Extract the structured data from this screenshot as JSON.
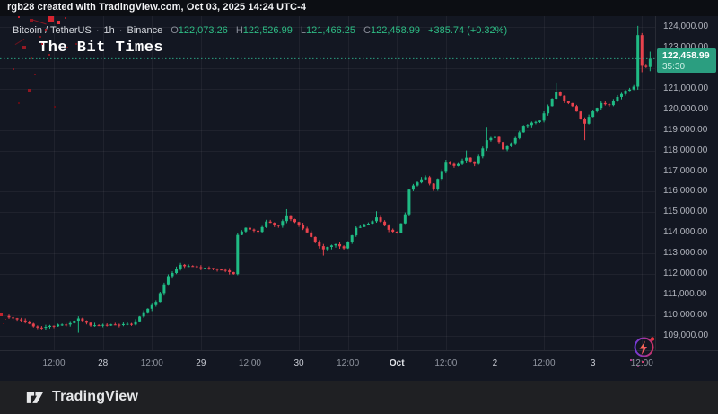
{
  "top_strip": {
    "text": "rgb28 created with TradingView.com, Oct 03, 2025 14:24 UTC-4"
  },
  "header": {
    "symbol": "Bitcoin / TetherUS",
    "interval": "1h",
    "exchange": "Binance",
    "separator": "·",
    "ohlc": [
      {
        "label": "O",
        "value": "122,073.26"
      },
      {
        "label": "H",
        "value": "122,526.99"
      },
      {
        "label": "L",
        "value": "121,466.25"
      },
      {
        "label": "C",
        "value": "122,458.99"
      }
    ],
    "change": "+385.74 (+0.32%)"
  },
  "watermark": {
    "text": "The Bit Times"
  },
  "price_label": {
    "price": "122,458.99",
    "countdown": "35:30"
  },
  "footer": {
    "brand": "TradingView"
  },
  "colors": {
    "up": "#1FBB84",
    "down": "#E8424D",
    "value_green": "#2EBD85",
    "price_label_bg": "#2B9E80",
    "chart_bg": "#131722",
    "grid": "rgba(255,255,255,0.05)"
  },
  "chart_data": {
    "type": "candlestick",
    "title": "Bitcoin / TetherUS · 1h · Binance",
    "timeframe": "1h",
    "grid": true,
    "y_axis": {
      "min": 109000,
      "max": 124000,
      "step": 1000,
      "labels": [
        "124,000.00",
        "123,000.00",
        "122,000.00",
        "121,000.00",
        "120,000.00",
        "119,000.00",
        "118,000.00",
        "117,000.00",
        "116,000.00",
        "115,000.00",
        "114,000.00",
        "113,000.00",
        "112,000.00",
        "111,000.00",
        "110,000.00",
        "109,000.00"
      ]
    },
    "x_axis": {
      "ticks": [
        {
          "label": "12:00",
          "i": 11,
          "kind": "time"
        },
        {
          "label": "28",
          "i": 23,
          "kind": "day"
        },
        {
          "label": "12:00",
          "i": 35,
          "kind": "time"
        },
        {
          "label": "29",
          "i": 47,
          "kind": "day"
        },
        {
          "label": "12:00",
          "i": 59,
          "kind": "time"
        },
        {
          "label": "30",
          "i": 71,
          "kind": "day"
        },
        {
          "label": "12:00",
          "i": 83,
          "kind": "time"
        },
        {
          "label": "Oct",
          "i": 95,
          "kind": "month"
        },
        {
          "label": "12:00",
          "i": 107,
          "kind": "time"
        },
        {
          "label": "2",
          "i": 119,
          "kind": "day"
        },
        {
          "label": "12:00",
          "i": 131,
          "kind": "time"
        },
        {
          "label": "3",
          "i": 143,
          "kind": "day"
        },
        {
          "label": "12:00",
          "i": 155,
          "kind": "time"
        }
      ]
    },
    "price_line": 122458.99,
    "last_close": 122458.99,
    "hours": 158,
    "waypoints": [
      [
        0,
        109900
      ],
      [
        3,
        109750
      ],
      [
        7,
        109400
      ],
      [
        14,
        109550
      ],
      [
        17,
        109850,
        null,
        109150
      ],
      [
        20,
        109500
      ],
      [
        30,
        109550
      ],
      [
        33,
        110150
      ],
      [
        36,
        110650
      ],
      [
        39,
        111900
      ],
      [
        42,
        112450
      ],
      [
        47,
        112300
      ],
      [
        52,
        112200
      ],
      [
        55,
        112000
      ],
      [
        56,
        113900
      ],
      [
        58,
        114250
      ],
      [
        61,
        114050
      ],
      [
        63,
        114550
      ],
      [
        66,
        114350
      ],
      [
        68,
        114850,
        115150
      ],
      [
        71,
        114400
      ],
      [
        74,
        113800
      ],
      [
        77,
        113200,
        null,
        112900
      ],
      [
        80,
        113450
      ],
      [
        82,
        113250
      ],
      [
        85,
        114250
      ],
      [
        88,
        114450
      ],
      [
        90,
        114750,
        115050
      ],
      [
        93,
        114150
      ],
      [
        95,
        114000
      ],
      [
        97,
        114900
      ],
      [
        98,
        116100
      ],
      [
        100,
        116450
      ],
      [
        102,
        116700
      ],
      [
        104,
        116150
      ],
      [
        107,
        117450
      ],
      [
        109,
        117250
      ],
      [
        112,
        117650,
        118000
      ],
      [
        114,
        117350
      ],
      [
        117,
        118500,
        119150
      ],
      [
        119,
        118700
      ],
      [
        121,
        118050
      ],
      [
        123,
        118350
      ],
      [
        126,
        119200
      ],
      [
        128,
        119350
      ],
      [
        130,
        119450
      ],
      [
        132,
        120150
      ],
      [
        134,
        120850,
        121300
      ],
      [
        136,
        120400
      ],
      [
        138,
        120150
      ],
      [
        141,
        119300,
        null,
        118500
      ],
      [
        143,
        119900
      ],
      [
        145,
        120300
      ],
      [
        147,
        120200
      ],
      [
        149,
        120600
      ],
      [
        151,
        120900
      ],
      [
        153,
        121100
      ],
      [
        154,
        123600,
        124050,
        120950
      ],
      [
        155,
        122150,
        123700,
        121800
      ],
      [
        156,
        122050
      ],
      [
        157,
        122458.99,
        122800,
        121850
      ]
    ]
  }
}
